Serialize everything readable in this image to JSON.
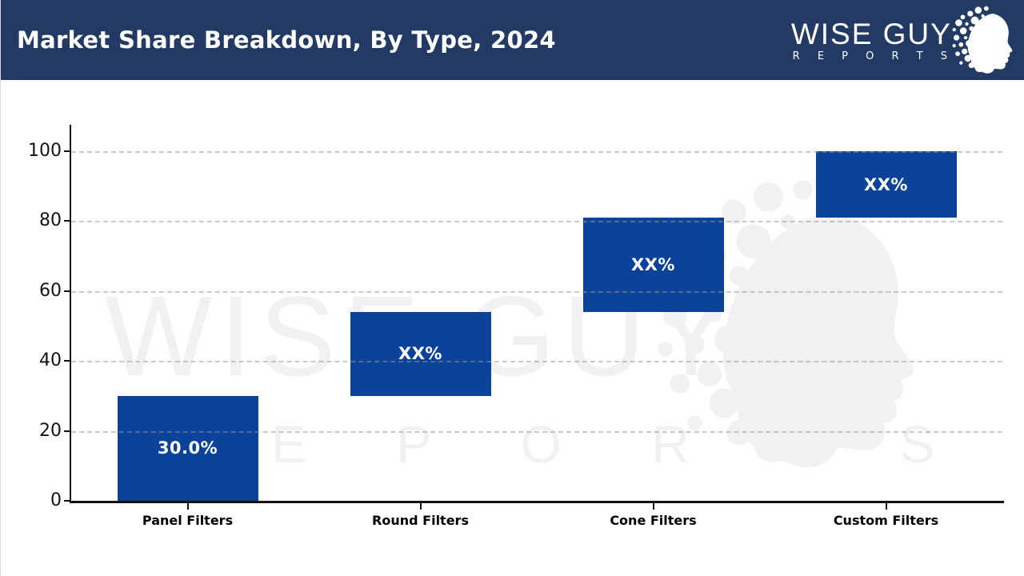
{
  "header": {
    "title": "Market Share Breakdown, By Type, 2024",
    "background_color": "#223a64",
    "logo": {
      "line1": "WISE GUY",
      "line2": "R E P O R T S"
    }
  },
  "watermark": {
    "line1": "WISE GUY",
    "line2": "R E P O R T S"
  },
  "chart_data": {
    "type": "bar",
    "subtype": "waterfall",
    "title": "Market Share Breakdown, By Type, 2024",
    "xlabel": "",
    "ylabel": "",
    "ylim": [
      0,
      100
    ],
    "yticks": [
      0,
      20,
      40,
      60,
      80,
      100
    ],
    "grid": "horizontal-dashed",
    "legend": "none",
    "bar_color": "#0c4299",
    "label_color": "#ffffff",
    "categories": [
      "Panel Filters",
      "Round Filters",
      "Cone Filters",
      "Custom Filters"
    ],
    "segments": [
      {
        "category": "Panel Filters",
        "start": 0,
        "end": 30,
        "value": 30,
        "label": "30.0%"
      },
      {
        "category": "Round Filters",
        "start": 30,
        "end": 54,
        "value": 24,
        "label": "XX%"
      },
      {
        "category": "Cone Filters",
        "start": 54,
        "end": 81,
        "value": 27,
        "label": "XX%"
      },
      {
        "category": "Custom Filters",
        "start": 81,
        "end": 100,
        "value": 19,
        "label": "XX%"
      }
    ]
  }
}
